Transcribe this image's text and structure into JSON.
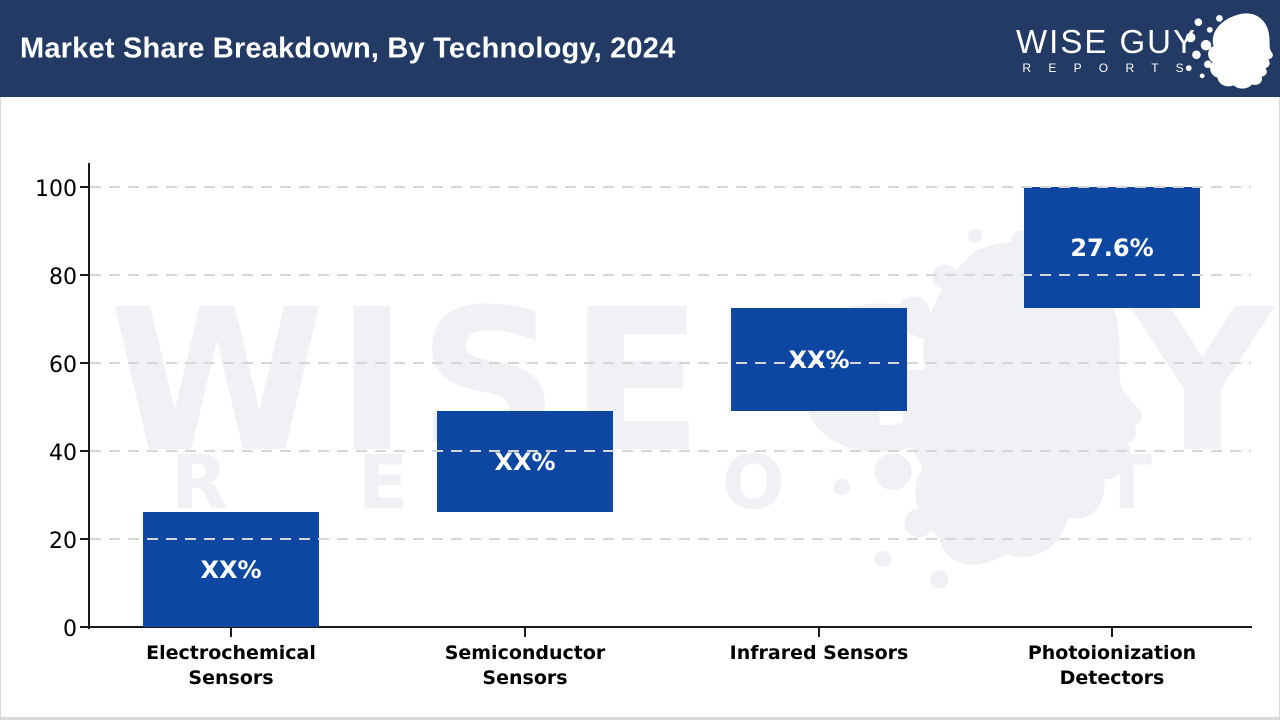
{
  "header": {
    "title": "Market Share Breakdown, By Technology, 2024",
    "logo": {
      "name": "WISE GUY",
      "sub": "R E P O R T S"
    }
  },
  "watermark": {
    "name": "WISE GUY",
    "sub": "R E P O R T S"
  },
  "colors": {
    "header_bg": "#223a64",
    "bar": "#0d47a1",
    "bar_label": "#ffffff",
    "grid": "#d6d6d6",
    "axis": "#1a1a1a",
    "watermark": "#f0f1f4"
  },
  "chart_data": {
    "type": "bar",
    "variant": "floating-waterfall",
    "title": "Market Share Breakdown, By Technology, 2024",
    "categories": [
      "Electrochemical Sensors",
      "Semiconductor Sensors",
      "Infrared Sensors",
      "Photoionization Detectors"
    ],
    "category_lines": [
      [
        "Electrochemical",
        "Sensors"
      ],
      [
        "Semiconductor",
        "Sensors"
      ],
      [
        "Infrared Sensors"
      ],
      [
        "Photoionization",
        "Detectors"
      ]
    ],
    "segments": [
      {
        "category": "Electrochemical Sensors",
        "start": 0,
        "end": 26.1,
        "label": "XX%"
      },
      {
        "category": "Semiconductor Sensors",
        "start": 26.1,
        "end": 49.1,
        "label": "XX%"
      },
      {
        "category": "Infrared Sensors",
        "start": 49.1,
        "end": 72.4,
        "label": "XX%"
      },
      {
        "category": "Photoionization Detectors",
        "start": 72.4,
        "end": 100,
        "label": "27.6%"
      }
    ],
    "xlabel": "",
    "ylabel": "",
    "ylim": [
      0,
      100
    ],
    "yticks": [
      0,
      20,
      40,
      60,
      80,
      100
    ],
    "grid": "horizontal-dashed",
    "legend": null
  }
}
